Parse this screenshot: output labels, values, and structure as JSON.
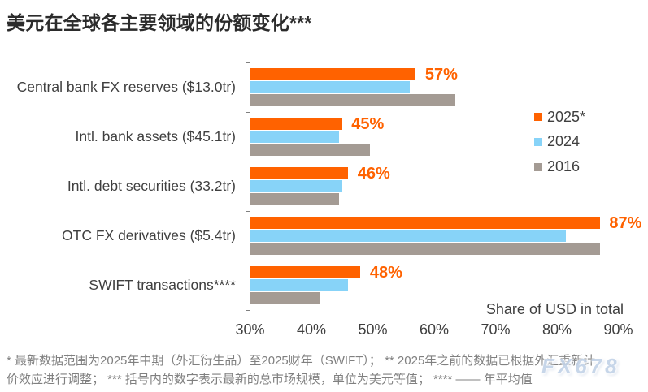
{
  "page": {
    "watermark": "FX678",
    "footnote_lines": [
      "* 最新数据范围为2025年中期（外汇衍生品）至2025财年（SWIFT）； ** 2025年之前的数据已根据外汇重新计",
      "价效应进行调整； *** 括号内的数字表示最新的总市场规模，单位为美元等值； **** —— 年平均值"
    ]
  },
  "colors": {
    "accent_orange": "#ff6200",
    "light_blue": "#87d3f8",
    "warm_gray": "#a49b94",
    "title_text": "#2b2b2b",
    "label_text": "#3f3f3f",
    "axis_line": "#7f7f7f",
    "footnote_text": "#808080",
    "watermark_blue": "#c3d3e8"
  },
  "chart_data": {
    "type": "bar",
    "orientation": "horizontal",
    "title": "美元在全球各主要领域的份额变化***",
    "categories": [
      "Central bank FX reserves ($13.0tr)",
      "Intl. bank assets ($45.1tr)",
      "Intl. debt securities (33.2tr)",
      "OTC FX derivatives ($5.4tr)",
      "SWIFT transactions****"
    ],
    "series": [
      {
        "name": "2025*",
        "color": "#ff6200",
        "values": [
          57,
          45,
          46,
          87,
          48
        ],
        "data_labels": [
          "57%",
          "45%",
          "46%",
          "87%",
          "48%"
        ]
      },
      {
        "name": "2024",
        "color": "#87d3f8",
        "values": [
          56,
          44.5,
          45,
          81.5,
          46
        ]
      },
      {
        "name": "2016",
        "color": "#a49b94",
        "values": [
          63.5,
          49.5,
          44.5,
          87,
          41.5
        ]
      }
    ],
    "xlabel": "Share of USD in total",
    "xlim": [
      30,
      94
    ],
    "xticks": [
      30,
      40,
      50,
      60,
      70,
      80,
      90
    ],
    "xtick_labels": [
      "30%",
      "40%",
      "50%",
      "60%",
      "70%",
      "80%",
      "90%"
    ],
    "legend": {
      "position": "right",
      "entries": [
        "2025*",
        "2024",
        "2016"
      ]
    },
    "grid": false,
    "data_labels_note": "only the 2025* series shows orange bold value labels"
  }
}
